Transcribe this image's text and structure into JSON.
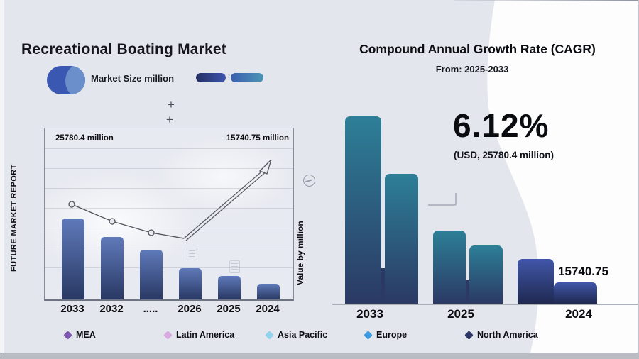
{
  "page": {
    "background_color": "#e4e6ee",
    "accent_navy": "#2b3566",
    "accent_teal": "#2d7f97",
    "accent_blue": "#4156a9"
  },
  "left_panel": {
    "title": "Recreational Boating Market",
    "legend_label": "Market Size million",
    "pill_separator": ":",
    "plus_top": "+",
    "plus_bottom": "+",
    "axis_note_left": "25780.4 million",
    "axis_note_right": "15740.75 million",
    "brand_vertical": "FUTURE MARKET REPORT"
  },
  "right_panel": {
    "title": "Compound Annual Growth Rate (CAGR)",
    "subtitle": "From: 2025-2033",
    "cagr_value": "6.12%",
    "cagr_caption": "(USD, 25780.4 million)",
    "value_annotation": "15740.75",
    "y_axis_label": "Value by million"
  },
  "chart_data": [
    {
      "type": "bar",
      "title": "Recreational Boating Market — Market Size million",
      "categories": [
        "2033",
        "2032",
        ".....",
        "2026",
        "2025",
        "2024"
      ],
      "series": [
        {
          "name": "Market Size million",
          "values": [
            114,
            88,
            70,
            44,
            33,
            22
          ],
          "unit": "relative height (unlabeled axis)"
        }
      ],
      "annotations": [
        "25780.4 million",
        "15740.75 million"
      ],
      "trend": "declining marker line over 2033-2026 then upward growth arrow",
      "bar_color_top": "#5f7aba",
      "bar_color_bottom": "#293863",
      "grid": true,
      "legend_position": "none"
    },
    {
      "type": "bar",
      "title": "Compound Annual Growth Rate (CAGR) From: 2025-2033",
      "categories": [
        "2033",
        "2025",
        "2024"
      ],
      "series": [
        {
          "name": "left bar",
          "values": [
            264,
            103,
            63
          ],
          "unit": "relative height (unlabeled axis)"
        },
        {
          "name": "right bar",
          "values": [
            183,
            82,
            30
          ],
          "unit": "relative height (unlabeled axis)"
        }
      ],
      "annotations": [
        "15740.75",
        "6.12%",
        "(USD, 25780.4 million)"
      ],
      "teal_top": "#2d7f97",
      "teal_bottom": "#2b3964",
      "blue_top": "#4156a9",
      "blue_bottom": "#1f2950",
      "grid": false,
      "legend_position": "bottom"
    }
  ],
  "legend": {
    "items": [
      {
        "label": "MEA",
        "color": "#7e57b0"
      },
      {
        "label": "Latin America",
        "color": "#d7a9de"
      },
      {
        "label": "Asia Pacific",
        "color": "#93d2ec"
      },
      {
        "label": "Europe",
        "color": "#3f9ce0"
      },
      {
        "label": "North America",
        "color": "#2b3566"
      }
    ]
  }
}
